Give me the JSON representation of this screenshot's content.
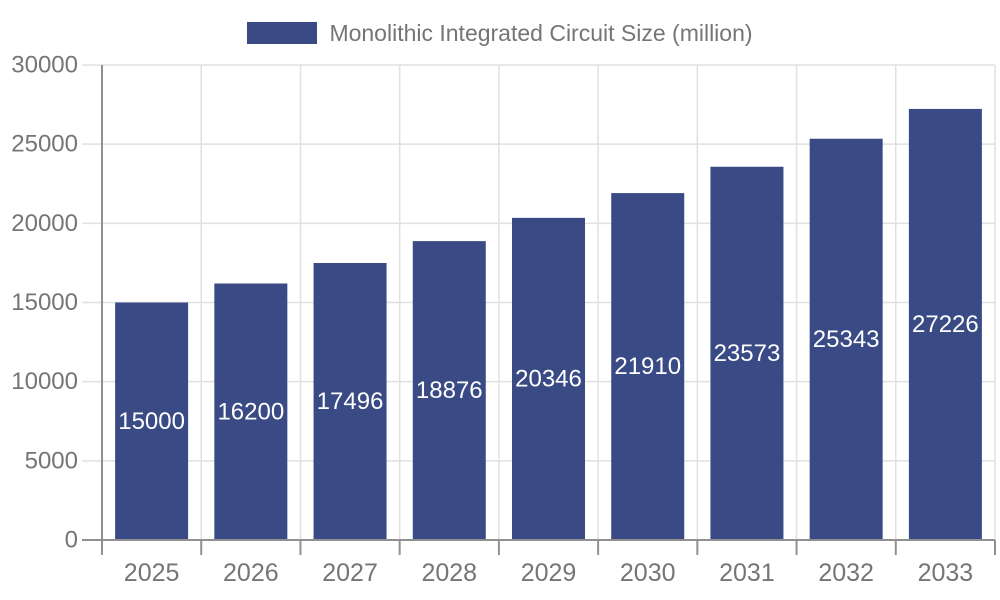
{
  "chart_data": {
    "type": "bar",
    "title": "",
    "xlabel": "",
    "ylabel": "",
    "categories": [
      "2025",
      "2026",
      "2027",
      "2028",
      "2029",
      "2030",
      "2031",
      "2032",
      "2033"
    ],
    "series": [
      {
        "name": "Monolithic Integrated Circuit Size (million)",
        "values": [
          15000,
          16200,
          17496,
          18876,
          20346,
          21910,
          23573,
          25343,
          27226
        ]
      }
    ],
    "value_labels_shown": true,
    "value_label_position": "inside-center",
    "ylim": [
      0,
      30000
    ],
    "yticks": [
      0,
      5000,
      10000,
      15000,
      20000,
      25000,
      30000
    ],
    "grid": true,
    "legend_position": "top"
  },
  "style": {
    "bar_color": "#394a84",
    "axis_color": "#909090",
    "grid_color": "#e0e0e0",
    "tick_label_color": "#757575",
    "value_label_color": "#ffffff",
    "background_color": "#ffffff"
  }
}
